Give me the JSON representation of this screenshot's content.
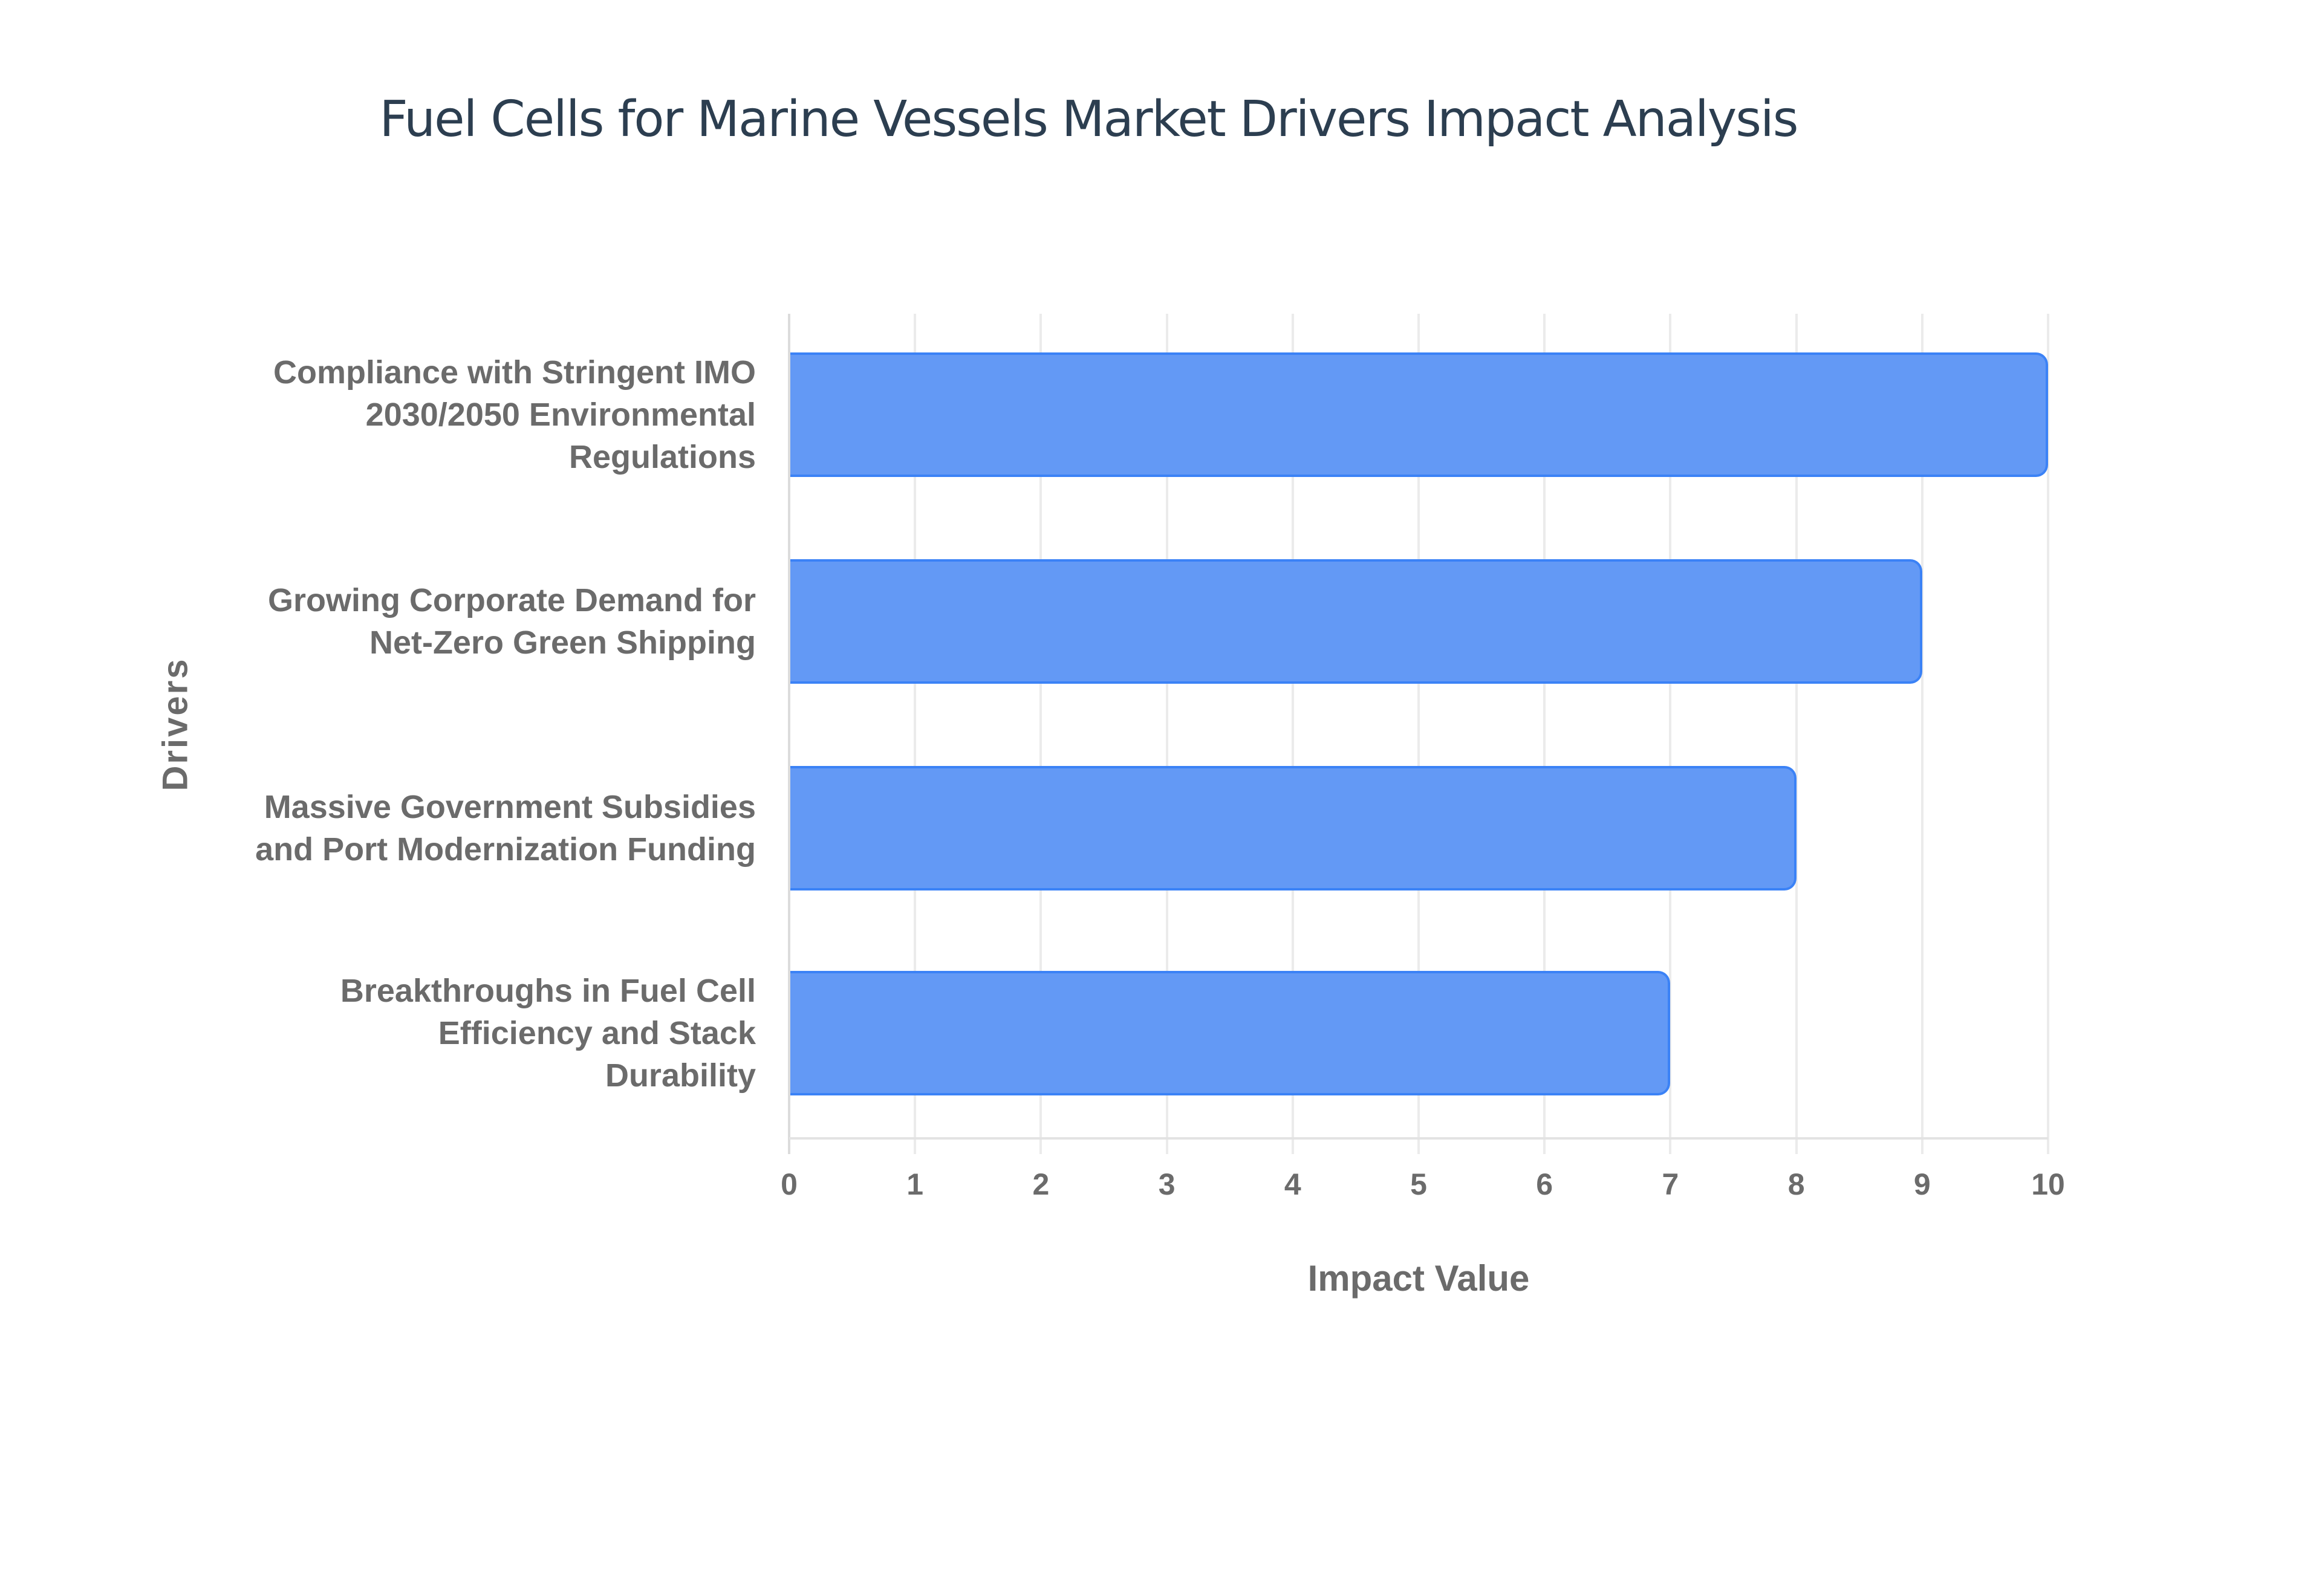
{
  "chart_data": {
    "type": "bar",
    "orientation": "horizontal",
    "title": "Fuel Cells for Marine Vessels Market Drivers Impact Analysis",
    "xlabel": "Impact Value",
    "ylabel": "Drivers",
    "categories": [
      "Compliance with Stringent IMO 2030/2050 Environmental Regulations",
      "Growing Corporate Demand for Net-Zero Green Shipping",
      "Massive Government Subsidies and Port Modernization Funding",
      "Breakthroughs in Fuel Cell Efficiency and Stack Durability"
    ],
    "category_label_lines": [
      [
        "Compliance with Stringent IMO",
        "2030/2050 Environmental",
        "Regulations"
      ],
      [
        "Growing Corporate Demand for",
        "Net-Zero Green Shipping"
      ],
      [
        "Massive Government Subsidies",
        "and Port Modernization Funding"
      ],
      [
        "Breakthroughs in Fuel Cell",
        "Efficiency and Stack",
        "Durability"
      ]
    ],
    "values": [
      10,
      9,
      8,
      7
    ],
    "xlim": [
      0,
      10
    ],
    "x_ticks": [
      "0",
      "1",
      "2",
      "3",
      "4",
      "5",
      "6",
      "7",
      "8",
      "9",
      "10"
    ],
    "grid": true,
    "legend": "none",
    "colors": {
      "bar_fill": "#6399f5",
      "bar_border": "#3b82f6",
      "title": "#2c3e50",
      "labels": "#6b6b6b",
      "grid": "#ebebeb"
    }
  }
}
